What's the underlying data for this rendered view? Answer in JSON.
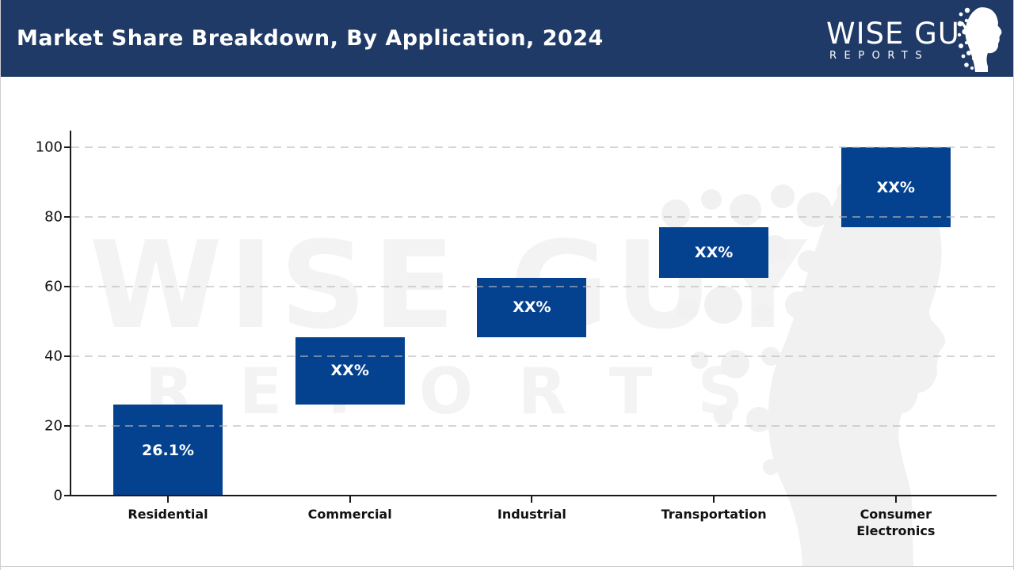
{
  "header": {
    "title": "Market Share Breakdown, By Application, 2024",
    "logo": {
      "line1": "WISE GUY",
      "line2": "REPORTS"
    }
  },
  "watermark": {
    "line1": "WISE GUY",
    "line2": "REPORTS"
  },
  "colors": {
    "header_bg": "#1f3a66",
    "bar": "#04418f",
    "axis": "#1a1a1a",
    "gridline": "#d9d9d9",
    "watermark": "#f3f3f3",
    "bar_label_text": "#ffffff"
  },
  "chart_data": {
    "type": "bar",
    "subtype": "waterfall",
    "title": "Market Share Breakdown, By Application, 2024",
    "xlabel": "",
    "ylabel": "",
    "ylim": [
      0,
      100
    ],
    "yticks": [
      0,
      20,
      40,
      60,
      80,
      100
    ],
    "grid": "horizontal-dashed",
    "legend": "none",
    "categories": [
      "Residential",
      "Commercial",
      "Industrial",
      "Transportation",
      "Consumer Electronics"
    ],
    "segments": [
      {
        "category": "Residential",
        "start": 0,
        "end": 26.1,
        "label": "26.1%"
      },
      {
        "category": "Commercial",
        "start": 26.1,
        "end": 45.5,
        "label": "XX%"
      },
      {
        "category": "Industrial",
        "start": 45.5,
        "end": 62.5,
        "label": "XX%"
      },
      {
        "category": "Transportation",
        "start": 62.5,
        "end": 77.0,
        "label": "XX%"
      },
      {
        "category": "Consumer Electronics",
        "start": 77.0,
        "end": 100.0,
        "label": "XX%"
      }
    ]
  }
}
